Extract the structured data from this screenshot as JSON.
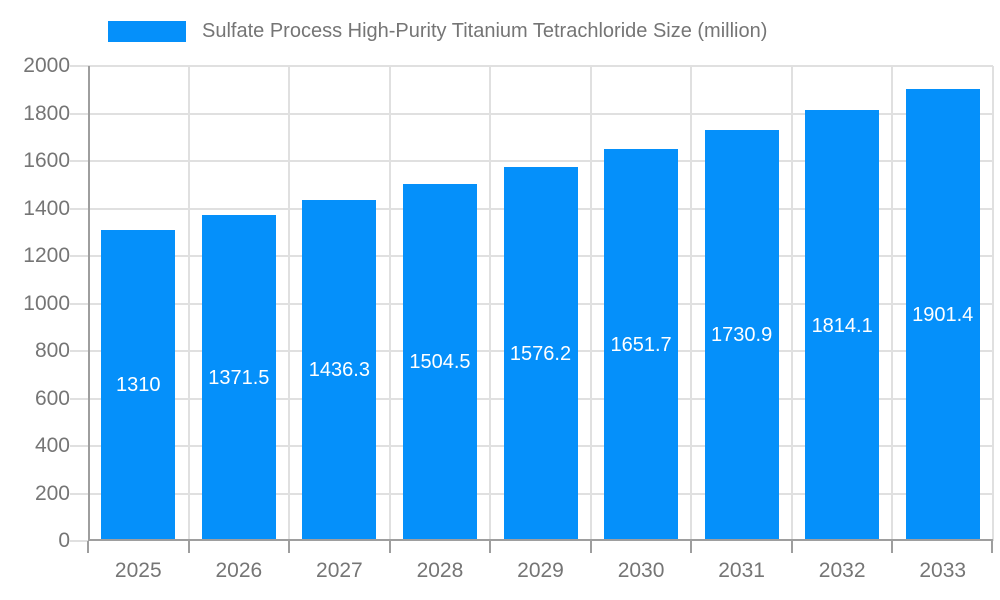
{
  "chart_data": {
    "type": "bar",
    "title": "Sulfate Process High-Purity Titanium Tetrachloride Size (million)",
    "categories": [
      "2025",
      "2026",
      "2027",
      "2028",
      "2029",
      "2030",
      "2031",
      "2032",
      "2033"
    ],
    "values": [
      1310,
      1371.5,
      1436.3,
      1504.5,
      1576.2,
      1651.7,
      1730.9,
      1814.1,
      1901.4
    ],
    "series": [
      {
        "name": "Sulfate Process High-Purity Titanium Tetrachloride Size (million)",
        "values": [
          1310,
          1371.5,
          1436.3,
          1504.5,
          1576.2,
          1651.7,
          1730.9,
          1814.1,
          1901.4
        ]
      }
    ],
    "xlabel": "",
    "ylabel": "",
    "ylim": [
      0,
      2000
    ],
    "yticks": [
      0,
      200,
      400,
      600,
      800,
      1000,
      1200,
      1400,
      1600,
      1800,
      2000
    ],
    "grid": true,
    "legend_position": "top-left",
    "bar_value_labels_shown": true,
    "colors": {
      "bar": "#0590fa",
      "bar_label_text": "#ffffff",
      "axis_text": "#757575",
      "axis_line": "#9e9e9e",
      "gridline": "#e0e0e0",
      "background": "#ffffff"
    }
  }
}
